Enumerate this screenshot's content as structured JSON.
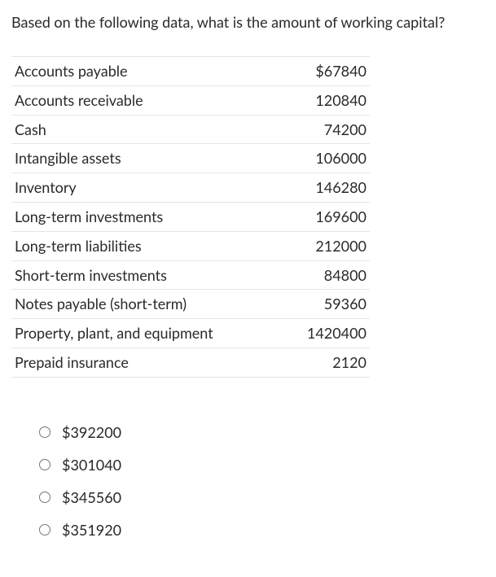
{
  "question": "Based on the following data, what is the amount of working capital?",
  "table": {
    "rows": [
      {
        "label": "Accounts payable",
        "value": "$67840"
      },
      {
        "label": "Accounts receivable",
        "value": "120840"
      },
      {
        "label": "Cash",
        "value": "74200"
      },
      {
        "label": "Intangible assets",
        "value": "106000"
      },
      {
        "label": "Inventory",
        "value": "146280"
      },
      {
        "label": "Long-term investments",
        "value": "169600"
      },
      {
        "label": "Long-term liabilities",
        "value": "212000"
      },
      {
        "label": "Short-term investments",
        "value": "84800"
      },
      {
        "label": "Notes payable (short-term)",
        "value": "59360"
      },
      {
        "label": "Property, plant, and equipment",
        "value": "1420400"
      },
      {
        "label": "Prepaid insurance",
        "value": "2120"
      }
    ]
  },
  "options": [
    {
      "label": "$392200"
    },
    {
      "label": "$301040"
    },
    {
      "label": "$345560"
    },
    {
      "label": "$351920"
    }
  ]
}
